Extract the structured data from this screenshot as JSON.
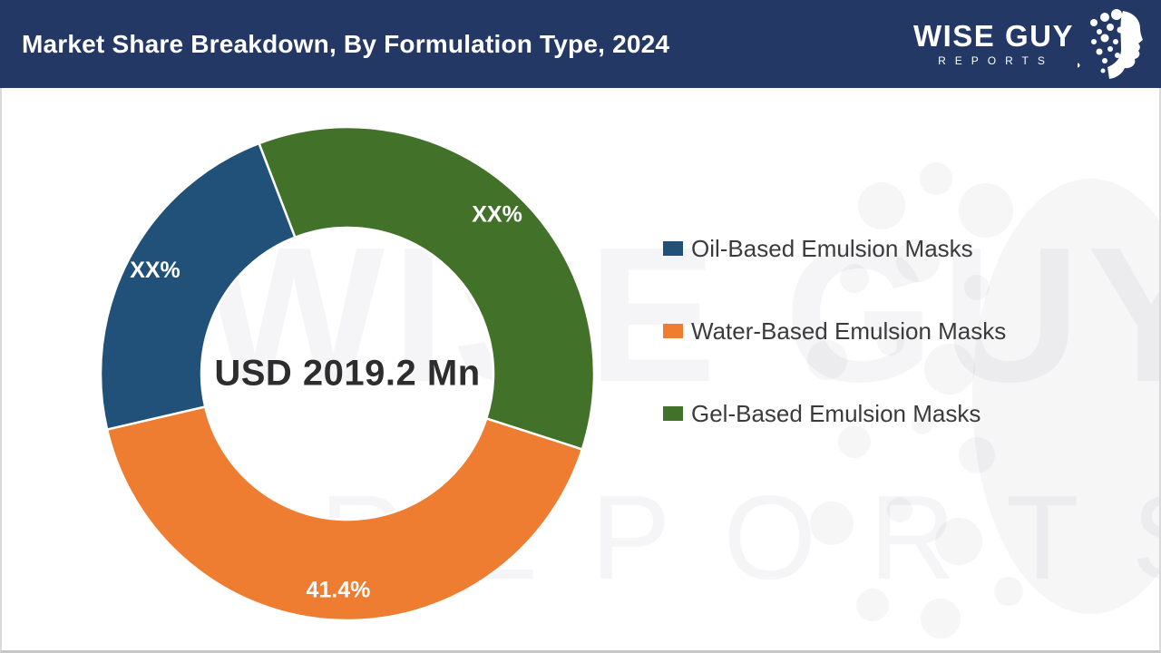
{
  "header": {
    "title": "Market Share Breakdown, By Formulation Type, 2024",
    "logo": {
      "name_top": "WISE GUY",
      "name_bottom": "REPORTS"
    }
  },
  "colors": {
    "header_bg": "#243866",
    "oil_blue": "#215079",
    "water_orange": "#EE7D31",
    "gel_green": "#427129",
    "legend_text": "#3B3B3B",
    "center_text": "#2D2D2D",
    "slice_label_text": "#FFFFFF"
  },
  "chart_data": {
    "type": "pie",
    "subtype": "donut",
    "title": "Market Share Breakdown, By Formulation Type, 2024",
    "center_label": "USD 2019.2 Mn",
    "legend_position": "right",
    "start_angle_deg_clockwise_from_top": -21,
    "clockwise_draw_order": [
      "gel",
      "water",
      "oil"
    ],
    "segments": [
      {
        "id": "oil",
        "label": "Oil-Based Emulsion Masks",
        "display_pct_label": "XX%",
        "value_pct": 22.8,
        "color": "#215079"
      },
      {
        "id": "water",
        "label": "Water-Based Emulsion Masks",
        "display_pct_label": "41.4%",
        "value_pct": 41.4,
        "color": "#EE7D31"
      },
      {
        "id": "gel",
        "label": "Gel-Based Emulsion Masks",
        "display_pct_label": "XX%",
        "value_pct": 35.8,
        "color": "#427129"
      }
    ]
  },
  "watermark": {
    "line1": "WISE GUY",
    "line2": "REPORTS"
  }
}
